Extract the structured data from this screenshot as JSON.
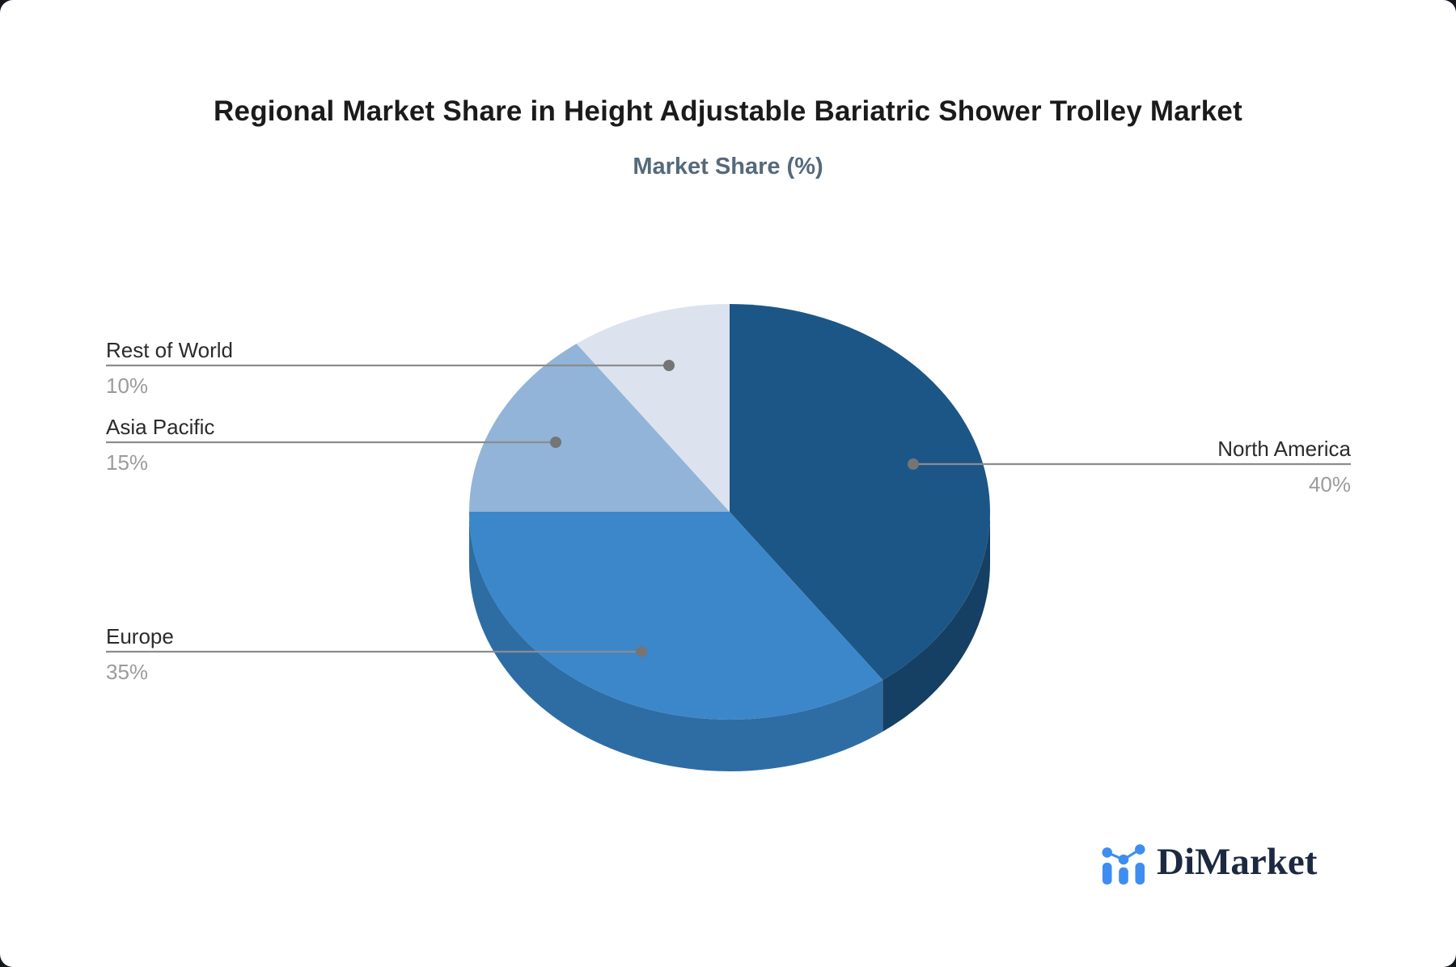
{
  "title": "Regional Market Share in Height Adjustable Bariatric Shower Trolley Market",
  "subtitle": "Market Share (%)",
  "logo": {
    "text": "DiMarket",
    "icon": "bar-line-chart-icon",
    "icon_color": "#3d8ef0",
    "text_color": "#1c2940"
  },
  "leader_style": {
    "line_color": "#8c8c8c",
    "dot_color": "#757575"
  },
  "chart_data": {
    "type": "pie",
    "title": "Regional Market Share in Height Adjustable Bariatric Shower Trolley Market",
    "subtitle": "Market Share (%)",
    "unit": "%",
    "effect": "3d",
    "start_angle": "12-o-clock",
    "direction": "clockwise",
    "legend_position": "callout-labels",
    "categories": [
      "North America",
      "Europe",
      "Asia Pacific",
      "Rest of World"
    ],
    "values": [
      40,
      35,
      15,
      10
    ],
    "slices": [
      {
        "label": "North America",
        "value": 40,
        "pct": "40%",
        "color": "#1b5687",
        "side_color": "#153f63"
      },
      {
        "label": "Europe",
        "value": 35,
        "pct": "35%",
        "color": "#3b87ca",
        "side_color": "#2e6da4"
      },
      {
        "label": "Asia Pacific",
        "value": 15,
        "pct": "15%",
        "color": "#92b4d8",
        "side_color": "#7598bb"
      },
      {
        "label": "Rest of World",
        "value": 10,
        "pct": "10%",
        "color": "#dde3ee",
        "side_color": "#bcc6d8"
      }
    ]
  }
}
